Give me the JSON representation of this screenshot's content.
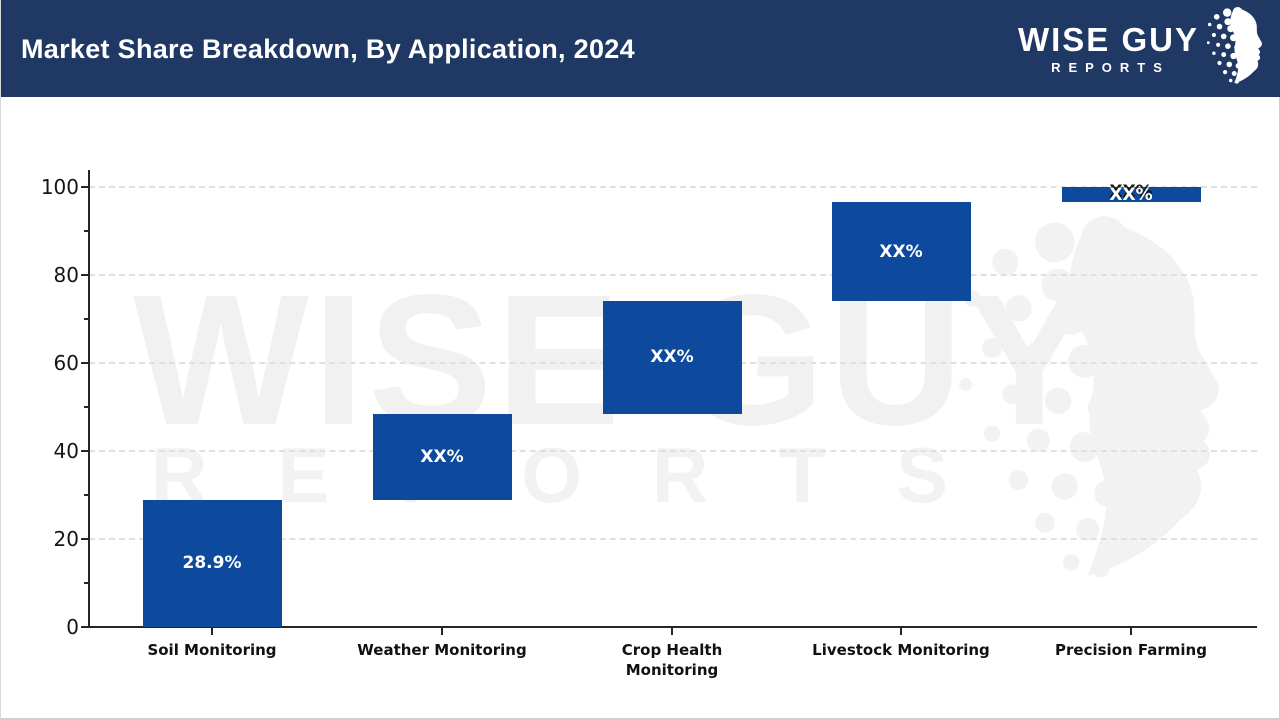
{
  "header": {
    "title": "Market Share Breakdown, By Application, 2024",
    "logo": {
      "line1": "WISE GUY",
      "line2": "REPORTS"
    }
  },
  "watermark": {
    "line1": "WISE GUY",
    "line2": "REPORTS"
  },
  "chart_data": {
    "type": "bar",
    "subtype": "waterfall",
    "title": "Market Share Breakdown, By Application, 2024",
    "categories": [
      "Soil Monitoring",
      "Weather Monitoring",
      "Crop Health Monitoring",
      "Livestock Monitoring",
      "Precision Farming"
    ],
    "segments": [
      {
        "category": "Soil Monitoring",
        "start": 0,
        "end": 28.9,
        "label": "28.9%"
      },
      {
        "category": "Weather Monitoring",
        "start": 28.9,
        "end": 48.5,
        "label": "XX%"
      },
      {
        "category": "Crop Health Monitoring",
        "start": 48.5,
        "end": 74,
        "label": "XX%"
      },
      {
        "category": "Livestock Monitoring",
        "start": 74,
        "end": 96.5,
        "label": "XX%"
      },
      {
        "category": "Precision Farming",
        "start": 96.5,
        "end": 100,
        "label": "XX%"
      }
    ],
    "ylim": [
      0,
      100
    ],
    "yticks": [
      0,
      20,
      40,
      60,
      80,
      100
    ],
    "yticks_minor": [
      10,
      30,
      50,
      70,
      90
    ],
    "grid": "horizontal-dashed",
    "legend": "none",
    "bar_color": "#0d4a9d",
    "bar_label_color": "#ffffff",
    "header_color": "#1f3864",
    "watermark_color": "#f1f1f1"
  }
}
